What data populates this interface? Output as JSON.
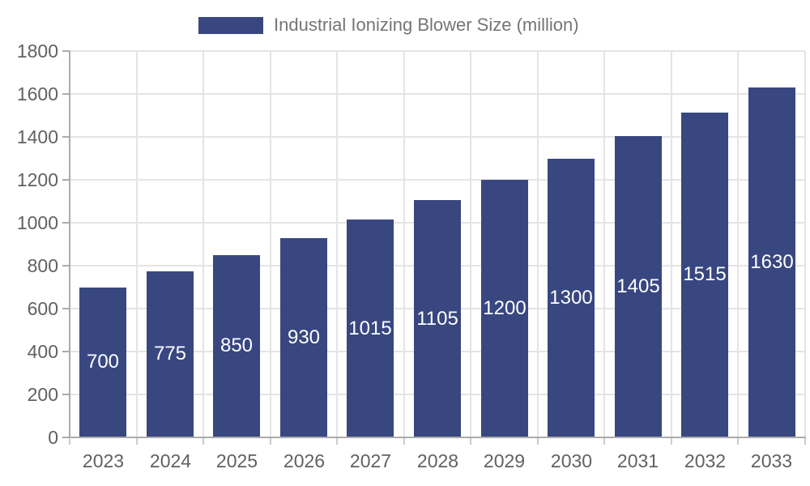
{
  "chart_data": {
    "type": "bar",
    "title": "Industrial Ionizing Blower Size (million)",
    "legend": {
      "label": "Industrial Ionizing Blower Size (million)",
      "position": "top-center"
    },
    "categories": [
      "2023",
      "2024",
      "2025",
      "2026",
      "2027",
      "2028",
      "2029",
      "2030",
      "2031",
      "2032",
      "2033"
    ],
    "series": [
      {
        "name": "Industrial Ionizing Blower Size (million)",
        "values": [
          700,
          775,
          850,
          930,
          1015,
          1105,
          1200,
          1300,
          1405,
          1515,
          1630
        ]
      }
    ],
    "xlabel": "",
    "ylabel": "",
    "ylim": [
      0,
      1800
    ],
    "ytick_step": 200,
    "grid": true,
    "bar_label_position": "inside-center",
    "colors": {
      "bar": "#384780",
      "grid_line": "#e4e4e4",
      "axis_line": "#ababab",
      "x_tick_mark": "#cccccc",
      "tick_label": "#616161",
      "legend_text": "#757575",
      "bar_label": "#ffffff",
      "background": "#ffffff"
    }
  }
}
